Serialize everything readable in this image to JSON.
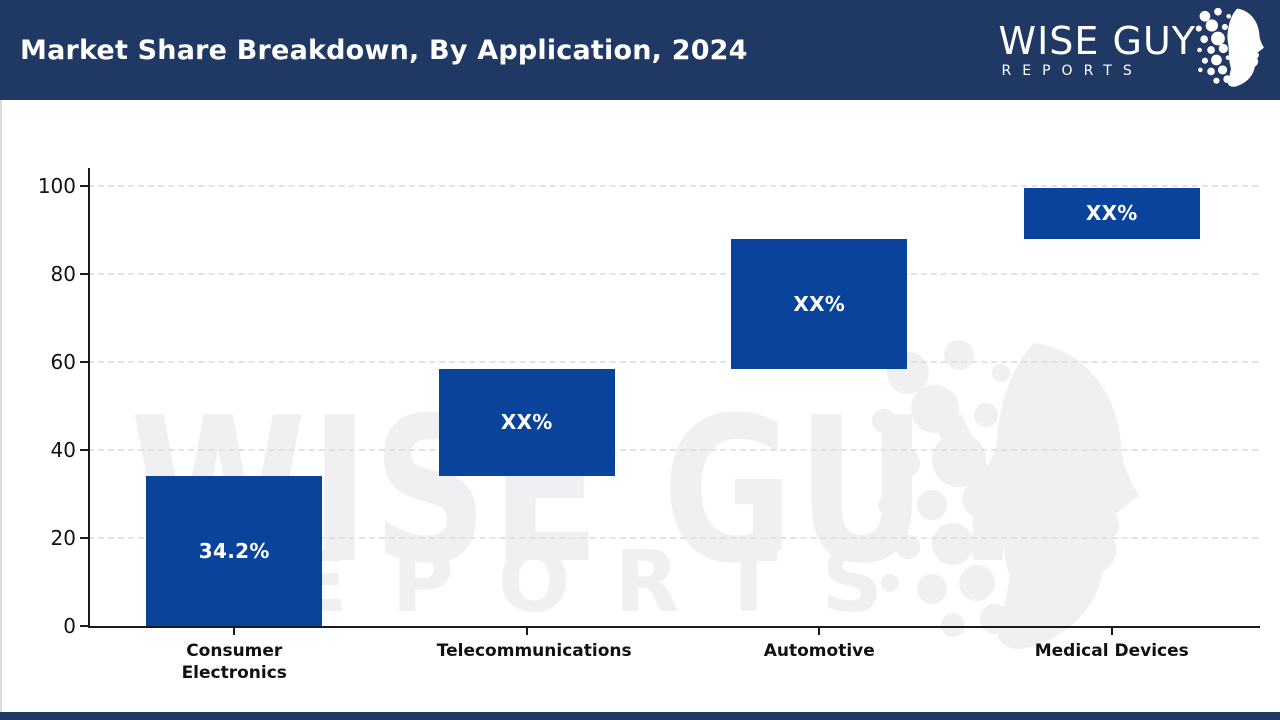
{
  "header": {
    "title": "Market Share Breakdown, By Application, 2024",
    "logo": {
      "name": "WISE GUY",
      "sub": "REPORTS"
    }
  },
  "watermark": {
    "line1": "WISE GUY",
    "line2": "REPORTS"
  },
  "colors": {
    "header_bg": "#1F3864",
    "footer_bg": "#1F3864",
    "bar": "#09439B",
    "watermark": "#F0F0F2",
    "grid": "#E2E2E2",
    "axis": "#1A1A1A",
    "bar_label": "#FFFFFF"
  },
  "chart_data": {
    "type": "bar",
    "subtype": "waterfall",
    "title": "Market Share Breakdown, By Application, 2024",
    "categories": [
      "Consumer Electronics",
      "Telecommunications",
      "Automotive",
      "Medical Devices"
    ],
    "segments": [
      {
        "category": "Consumer Electronics",
        "start": 0,
        "end": 34.2,
        "label": "34.2%"
      },
      {
        "category": "Telecommunications",
        "start": 34.2,
        "end": 58.5,
        "label": "XX%"
      },
      {
        "category": "Automotive",
        "start": 58.5,
        "end": 88.0,
        "label": "XX%"
      },
      {
        "category": "Medical Devices",
        "start": 88.0,
        "end": 99.6,
        "label": "XX%"
      }
    ],
    "xlabel": "",
    "ylabel": "",
    "ylim": [
      0,
      100
    ],
    "yticks": [
      0,
      20,
      40,
      60,
      80,
      100
    ],
    "grid": "dashed-horizontal",
    "legend": "none"
  }
}
